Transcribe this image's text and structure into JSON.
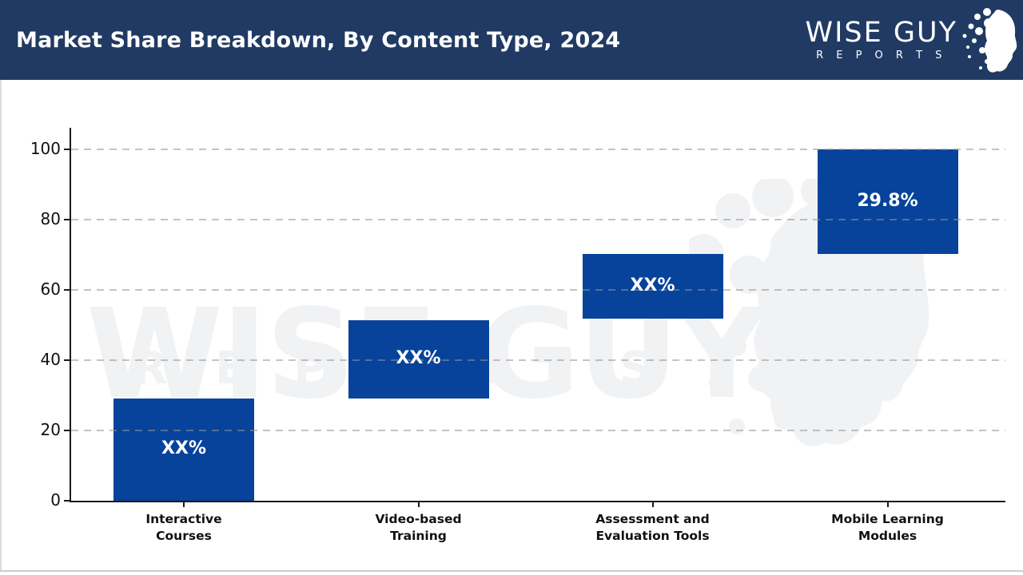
{
  "header": {
    "title": "Market Share Breakdown, By Content Type, 2024",
    "logo": {
      "name": "WISE GUY",
      "subtitle": "R E P O R T S"
    }
  },
  "watermark": {
    "wordmark": "WISE GUY",
    "subtitle": "REPORTS"
  },
  "colors": {
    "header_bg": "#203a64",
    "bar": "#07439b",
    "bar_label_text": "#ffffff",
    "axis": "#1a1a1a",
    "gridline": "#949494",
    "watermark": "#f1f2f4",
    "title_text": "#ffffff"
  },
  "chart_data": {
    "type": "bar",
    "subtype": "waterfall-floating-bars",
    "title": "Market Share Breakdown, By Content Type, 2024",
    "categories": [
      [
        "Interactive",
        "Courses"
      ],
      [
        "Video-based",
        "Training"
      ],
      [
        "Assessment and",
        "Evaluation Tools"
      ],
      [
        "Mobile Learning",
        "Modules"
      ]
    ],
    "segments": [
      {
        "category": "Interactive Courses",
        "start": 0,
        "end": 29,
        "label": "XX%"
      },
      {
        "category": "Video-based Training",
        "start": 29.1,
        "end": 51.4,
        "label": "XX%"
      },
      {
        "category": "Assessment and Evaluation Tools",
        "start": 51.8,
        "end": 70.2,
        "label": "XX%"
      },
      {
        "category": "Mobile Learning Modules",
        "start": 70.2,
        "end": 100,
        "label": "29.8%",
        "value": 29.8
      }
    ],
    "yticks": [
      0,
      20,
      40,
      60,
      80,
      100
    ],
    "ylim": [
      0,
      106
    ],
    "xlabel": "",
    "ylabel": "",
    "grid": "horizontal-dashed",
    "legend": "none"
  }
}
